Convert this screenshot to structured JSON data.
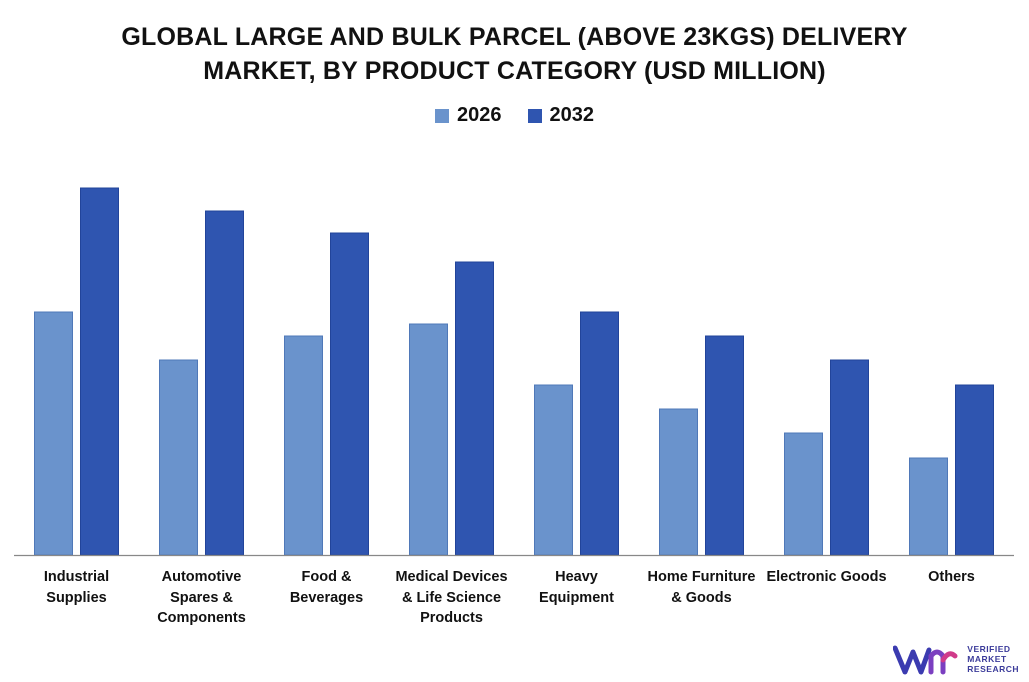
{
  "chart_data": {
    "type": "bar",
    "title_lines": [
      "GLOBAL LARGE AND BULK PARCEL (ABOVE 23KGS) DELIVERY",
      "MARKET, BY PRODUCT CATEGORY (USD MILLION)"
    ],
    "categories": [
      [
        "Industrial",
        "Supplies"
      ],
      [
        "Automotive",
        "Spares &",
        "Components"
      ],
      [
        "Food &",
        "Beverages"
      ],
      [
        "Medical Devices",
        "& Life Science",
        "Products"
      ],
      [
        "Heavy",
        "Equipment"
      ],
      [
        "Home Furniture",
        "& Goods"
      ],
      [
        "Electronic Goods"
      ],
      [
        "Others"
      ]
    ],
    "series": [
      {
        "name": "2026",
        "color": "#6a93cc",
        "values": [
          243,
          195,
          219,
          231,
          170,
          146,
          122,
          97
        ]
      },
      {
        "name": "2032",
        "color": "#2f55b0",
        "values": [
          367,
          344,
          322,
          293,
          243,
          219,
          195,
          170
        ]
      }
    ],
    "ylim": [
      0,
      400
    ],
    "grid": false,
    "legend_position": "top-center",
    "xlabel": "",
    "ylabel": ""
  }
}
